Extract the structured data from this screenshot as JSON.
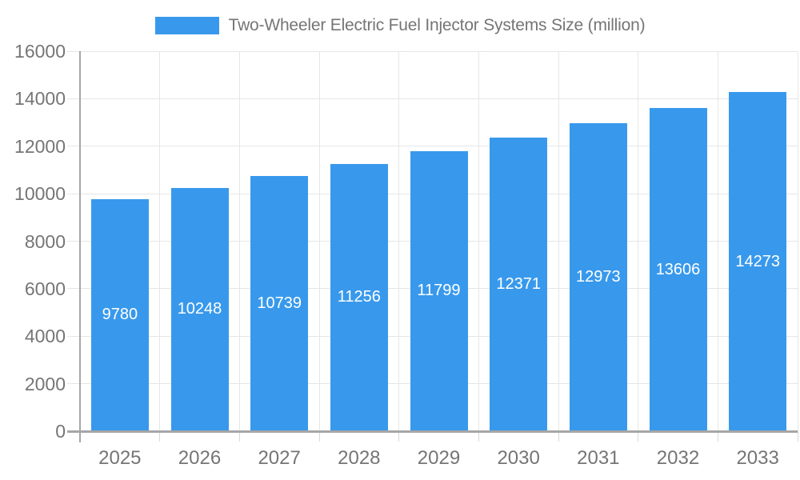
{
  "chart_data": {
    "type": "bar",
    "title": "Two-Wheeler Electric Fuel Injector Systems Size (million)",
    "categories": [
      "2025",
      "2026",
      "2027",
      "2028",
      "2029",
      "2030",
      "2031",
      "2032",
      "2033"
    ],
    "series": [
      {
        "name": "Two-Wheeler Electric Fuel Injector Systems Size (million)",
        "values": [
          9780,
          10248,
          10739,
          11256,
          11799,
          12371,
          12973,
          13606,
          14273
        ]
      }
    ],
    "xlabel": "",
    "ylabel": "",
    "ylim": [
      0,
      16000
    ],
    "ytick_step": 2000,
    "ytick_labels": [
      "0",
      "2000",
      "4000",
      "6000",
      "8000",
      "10000",
      "12000",
      "14000",
      "16000"
    ],
    "grid": true,
    "legend_position": "top-center",
    "bar_value_labels_visible": true,
    "colors": {
      "bar": "#3899EC",
      "bar_value_label": "#FFFFFF",
      "tick_label": "#757575",
      "legend_text": "#757575",
      "gridline": "#E6E6E6",
      "minor_tick": "#D8D8D8",
      "axis": "#A6A6A6",
      "background": "#FFFFFF"
    }
  }
}
